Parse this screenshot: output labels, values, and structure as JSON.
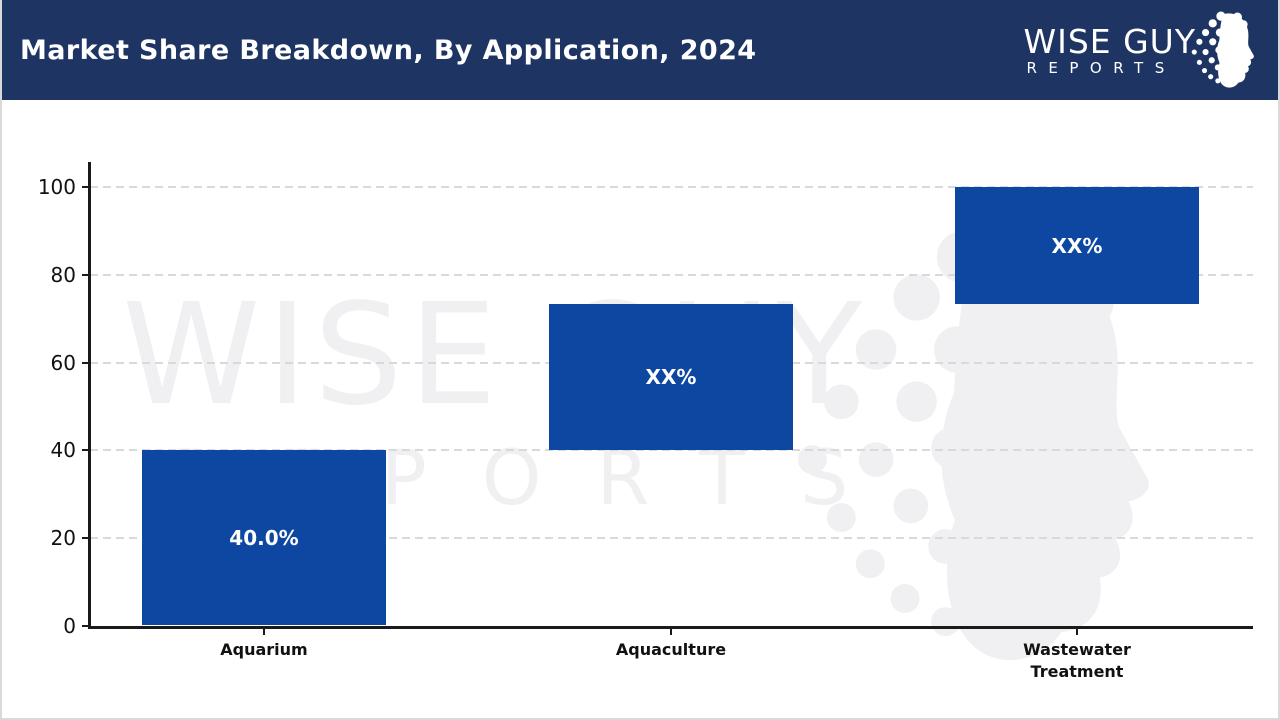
{
  "header": {
    "title": "Market Share Breakdown, By Application, 2024",
    "logo": {
      "line1": "WISE GUY",
      "line2": "REPORTS"
    }
  },
  "watermark": {
    "line1": "WISE GUY",
    "line2": "REPORTS"
  },
  "colors": {
    "header_bg": "#1e3563",
    "bar_fill": "#0d47a1",
    "bar_label_text": "#ffffff",
    "grid_line": "#d9d9d9",
    "axis_line": "#1a1a1a",
    "watermark": "#f0f0f2"
  },
  "chart_data": {
    "type": "bar",
    "subtype": "stacked-waterfall",
    "title": "Market Share Breakdown, By Application, 2024",
    "categories": [
      "Aquarium",
      "Aquaculture",
      "Wastewater Treatment"
    ],
    "segments": [
      {
        "category": "Aquarium",
        "start": 0,
        "end": 40,
        "size": 40.0,
        "label": "40.0%"
      },
      {
        "category": "Aquaculture",
        "start": 40,
        "end": 73.3,
        "size": 33.3,
        "label": "XX%"
      },
      {
        "category": "Wastewater Treatment",
        "start": 73.3,
        "end": 100,
        "size": 26.7,
        "label": "XX%"
      }
    ],
    "xlabel": "",
    "ylabel": "",
    "ylim": [
      0,
      100
    ],
    "yticks": [
      0,
      20,
      40,
      60,
      80,
      100
    ],
    "grid": "horizontal-dashed",
    "legend": "none"
  }
}
